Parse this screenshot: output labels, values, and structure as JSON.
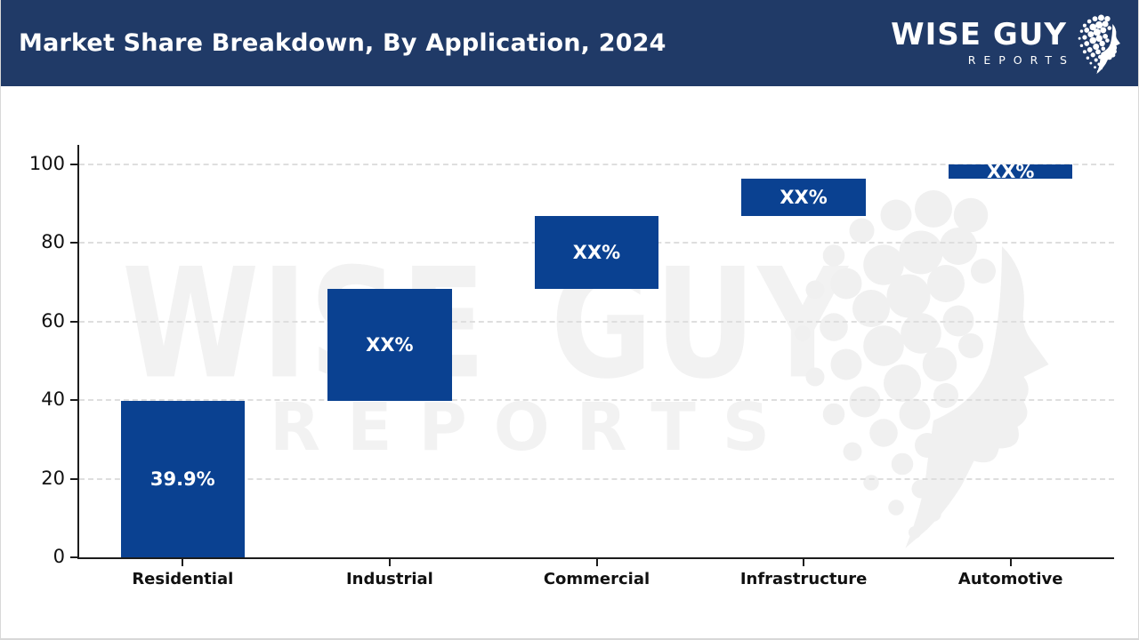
{
  "header": {
    "title": "Market Share Breakdown, By Application, 2024",
    "bg_color": "#203a67",
    "logo": {
      "line1": "WISE GUY",
      "line2": "REPORTS"
    }
  },
  "watermark": {
    "line1": "WISE GUY",
    "line2": "REPORTS"
  },
  "chart_data": {
    "type": "bar",
    "subtype": "waterfall",
    "title": "Market Share Breakdown, By Application, 2024",
    "categories": [
      "Residential",
      "Industrial",
      "Commercial",
      "Infrastructure",
      "Automotive"
    ],
    "segments": [
      {
        "category": "Residential",
        "start": 0,
        "end": 39.9,
        "label": "39.9%"
      },
      {
        "category": "Industrial",
        "start": 39.9,
        "end": 68.3,
        "label": "XX%"
      },
      {
        "category": "Commercial",
        "start": 68.3,
        "end": 86.8,
        "label": "XX%"
      },
      {
        "category": "Infrastructure",
        "start": 86.8,
        "end": 96.3,
        "label": "XX%"
      },
      {
        "category": "Automotive",
        "start": 96.3,
        "end": 100,
        "label": "XX%"
      }
    ],
    "yticks": [
      0,
      20,
      40,
      60,
      80,
      100
    ],
    "ylim": [
      0,
      105
    ],
    "grid": true,
    "grid_style": "dashed",
    "legend": "none",
    "bar_color": "#0a4191",
    "bar_label_color": "#ffffff",
    "axis_color": "#1c1c1c"
  }
}
